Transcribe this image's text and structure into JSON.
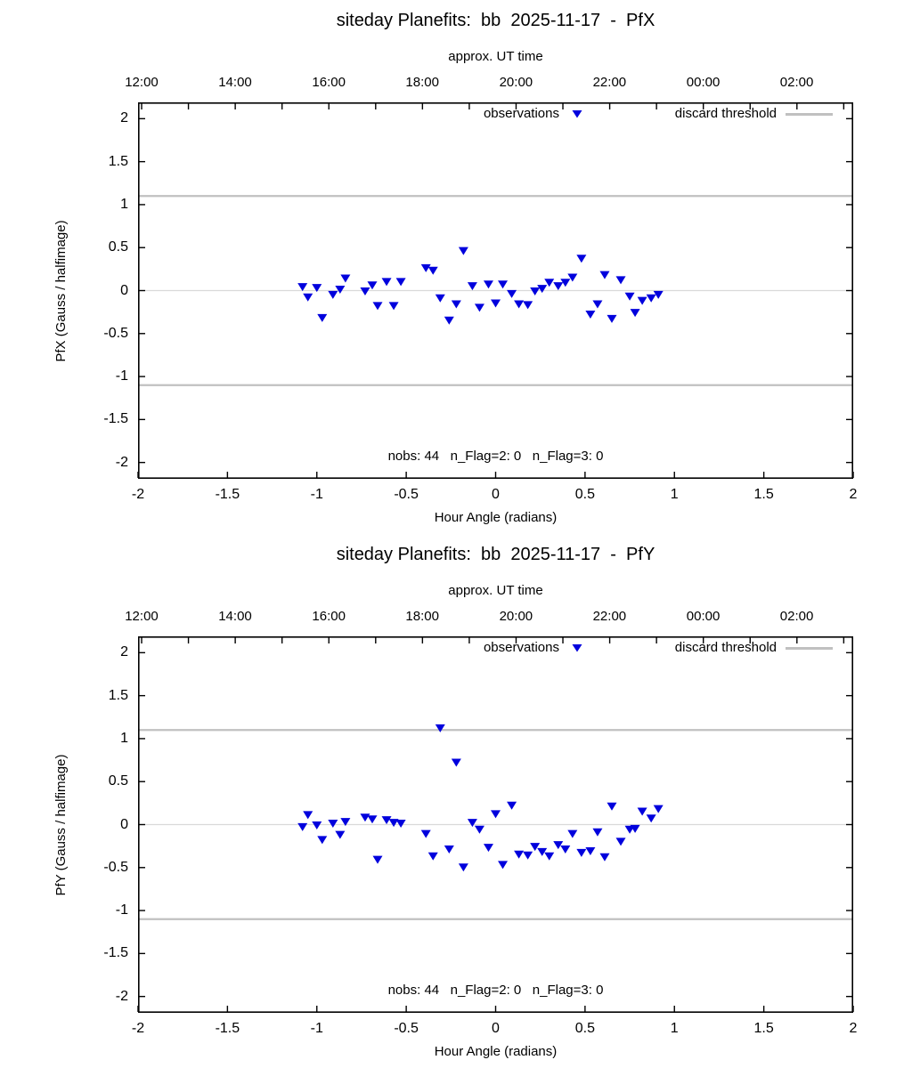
{
  "colors": {
    "marker": "#0000dd",
    "threshold_line": "#c0c0c0",
    "zero_line": "#d9d9d9",
    "frame": "#000000",
    "text": "#000000"
  },
  "chart_data": [
    {
      "type": "scatter",
      "title": "siteday Planefits:  bb  2025-11-17  -  PfX",
      "x2label": "approx. UT time",
      "xlabel": "Hour Angle (radians)",
      "ylabel": "PfX (Gauss / halfimage)",
      "annotation": "nobs: 44   n_Flag=2: 0   n_Flag=3: 0",
      "xlim": [
        -2,
        2
      ],
      "ylim": [
        -2.19,
        2.19
      ],
      "grid": false,
      "legend_position": "top-right-inside",
      "legend": [
        {
          "label": "observations",
          "symbol": "triangle-down"
        },
        {
          "label": "discard threshold",
          "symbol": "line"
        }
      ],
      "threshold_y": [
        1.1,
        -1.1
      ],
      "zero_line_y": 0,
      "xticks": [
        {
          "v": -2,
          "label": "-2"
        },
        {
          "v": -1.5,
          "label": "-1.5"
        },
        {
          "v": -1,
          "label": "-1"
        },
        {
          "v": -0.5,
          "label": "-0.5"
        },
        {
          "v": 0,
          "label": "0"
        },
        {
          "v": 0.5,
          "label": "0.5"
        },
        {
          "v": 1,
          "label": "1"
        },
        {
          "v": 1.5,
          "label": "1.5"
        },
        {
          "v": 2,
          "label": "2"
        }
      ],
      "yticks": [
        {
          "v": 2,
          "label": "2"
        },
        {
          "v": 1.5,
          "label": "1.5"
        },
        {
          "v": 1,
          "label": "1"
        },
        {
          "v": 0.5,
          "label": "0.5"
        },
        {
          "v": 0,
          "label": "0"
        },
        {
          "v": -0.5,
          "label": "-0.5"
        },
        {
          "v": -1,
          "label": "-1"
        },
        {
          "v": -1.5,
          "label": "-1.5"
        },
        {
          "v": -2,
          "label": "-2"
        }
      ],
      "x2ticks": [
        {
          "x": -1.98,
          "label": "12:00"
        },
        {
          "x": -1.457,
          "label": "14:00"
        },
        {
          "x": -0.933,
          "label": "16:00"
        },
        {
          "x": -0.41,
          "label": "18:00"
        },
        {
          "x": 0.114,
          "label": "20:00"
        },
        {
          "x": 0.637,
          "label": "22:00"
        },
        {
          "x": 1.161,
          "label": "00:00"
        },
        {
          "x": 1.684,
          "label": "02:00"
        }
      ],
      "x2_minor_start": -1.98,
      "x2_minor_step": 0.2618,
      "series": [
        {
          "name": "observations",
          "marker": "triangle-down",
          "color": "#0000dd",
          "x": [
            -1.08,
            -1.05,
            -1.0,
            -0.97,
            -0.91,
            -0.87,
            -0.84,
            -0.73,
            -0.69,
            -0.66,
            -0.61,
            -0.57,
            -0.53,
            -0.39,
            -0.35,
            -0.31,
            -0.26,
            -0.22,
            -0.18,
            -0.13,
            -0.09,
            -0.04,
            0.0,
            0.04,
            0.09,
            0.13,
            0.18,
            0.22,
            0.26,
            0.3,
            0.35,
            0.39,
            0.43,
            0.48,
            0.53,
            0.57,
            0.61,
            0.65,
            0.7,
            0.75,
            0.78,
            0.82,
            0.87,
            0.91
          ],
          "y": [
            0.04,
            -0.08,
            0.03,
            -0.32,
            -0.05,
            0.01,
            0.14,
            -0.01,
            0.06,
            -0.18,
            0.1,
            -0.18,
            0.1,
            0.26,
            0.23,
            -0.09,
            -0.35,
            -0.16,
            0.46,
            0.05,
            -0.2,
            0.07,
            -0.15,
            0.07,
            -0.04,
            -0.16,
            -0.17,
            -0.01,
            0.02,
            0.09,
            0.05,
            0.09,
            0.15,
            0.37,
            -0.28,
            -0.16,
            0.18,
            -0.33,
            0.12,
            -0.07,
            -0.26,
            -0.12,
            -0.09,
            -0.05
          ]
        }
      ]
    },
    {
      "type": "scatter",
      "title": "siteday Planefits:  bb  2025-11-17  -  PfY",
      "x2label": "approx. UT time",
      "xlabel": "Hour Angle (radians)",
      "ylabel": "PfY (Gauss / halfimage)",
      "annotation": "nobs: 44   n_Flag=2: 0   n_Flag=3: 0",
      "xlim": [
        -2,
        2
      ],
      "ylim": [
        -2.19,
        2.19
      ],
      "grid": false,
      "legend_position": "top-right-inside",
      "legend": [
        {
          "label": "observations",
          "symbol": "triangle-down"
        },
        {
          "label": "discard threshold",
          "symbol": "line"
        }
      ],
      "threshold_y": [
        1.1,
        -1.1
      ],
      "zero_line_y": 0,
      "xticks": [
        {
          "v": -2,
          "label": "-2"
        },
        {
          "v": -1.5,
          "label": "-1.5"
        },
        {
          "v": -1,
          "label": "-1"
        },
        {
          "v": -0.5,
          "label": "-0.5"
        },
        {
          "v": 0,
          "label": "0"
        },
        {
          "v": 0.5,
          "label": "0.5"
        },
        {
          "v": 1,
          "label": "1"
        },
        {
          "v": 1.5,
          "label": "1.5"
        },
        {
          "v": 2,
          "label": "2"
        }
      ],
      "yticks": [
        {
          "v": 2,
          "label": "2"
        },
        {
          "v": 1.5,
          "label": "1.5"
        },
        {
          "v": 1,
          "label": "1"
        },
        {
          "v": 0.5,
          "label": "0.5"
        },
        {
          "v": 0,
          "label": "0"
        },
        {
          "v": -0.5,
          "label": "-0.5"
        },
        {
          "v": -1,
          "label": "-1"
        },
        {
          "v": -1.5,
          "label": "-1.5"
        },
        {
          "v": -2,
          "label": "-2"
        }
      ],
      "x2ticks": [
        {
          "x": -1.98,
          "label": "12:00"
        },
        {
          "x": -1.457,
          "label": "14:00"
        },
        {
          "x": -0.933,
          "label": "16:00"
        },
        {
          "x": -0.41,
          "label": "18:00"
        },
        {
          "x": 0.114,
          "label": "20:00"
        },
        {
          "x": 0.637,
          "label": "22:00"
        },
        {
          "x": 1.161,
          "label": "00:00"
        },
        {
          "x": 1.684,
          "label": "02:00"
        }
      ],
      "x2_minor_start": -1.98,
      "x2_minor_step": 0.2618,
      "series": [
        {
          "name": "observations",
          "marker": "triangle-down",
          "color": "#0000dd",
          "x": [
            -1.08,
            -1.05,
            -1.0,
            -0.97,
            -0.91,
            -0.87,
            -0.84,
            -0.73,
            -0.69,
            -0.66,
            -0.61,
            -0.57,
            -0.53,
            -0.39,
            -0.35,
            -0.31,
            -0.26,
            -0.22,
            -0.18,
            -0.13,
            -0.09,
            -0.04,
            0.0,
            0.04,
            0.09,
            0.13,
            0.18,
            0.22,
            0.26,
            0.3,
            0.35,
            0.39,
            0.43,
            0.48,
            0.53,
            0.57,
            0.61,
            0.65,
            0.7,
            0.75,
            0.78,
            0.82,
            0.87,
            0.91
          ],
          "y": [
            -0.03,
            0.11,
            -0.01,
            -0.18,
            0.01,
            -0.12,
            0.03,
            0.08,
            0.06,
            -0.41,
            0.05,
            0.02,
            0.01,
            -0.11,
            -0.37,
            1.12,
            -0.29,
            0.72,
            -0.5,
            0.02,
            -0.06,
            -0.27,
            0.12,
            -0.47,
            0.22,
            -0.35,
            -0.36,
            -0.26,
            -0.32,
            -0.37,
            -0.24,
            -0.29,
            -0.11,
            -0.33,
            -0.31,
            -0.09,
            -0.38,
            0.21,
            -0.2,
            -0.06,
            -0.05,
            0.15,
            0.07,
            0.18
          ]
        }
      ]
    }
  ]
}
